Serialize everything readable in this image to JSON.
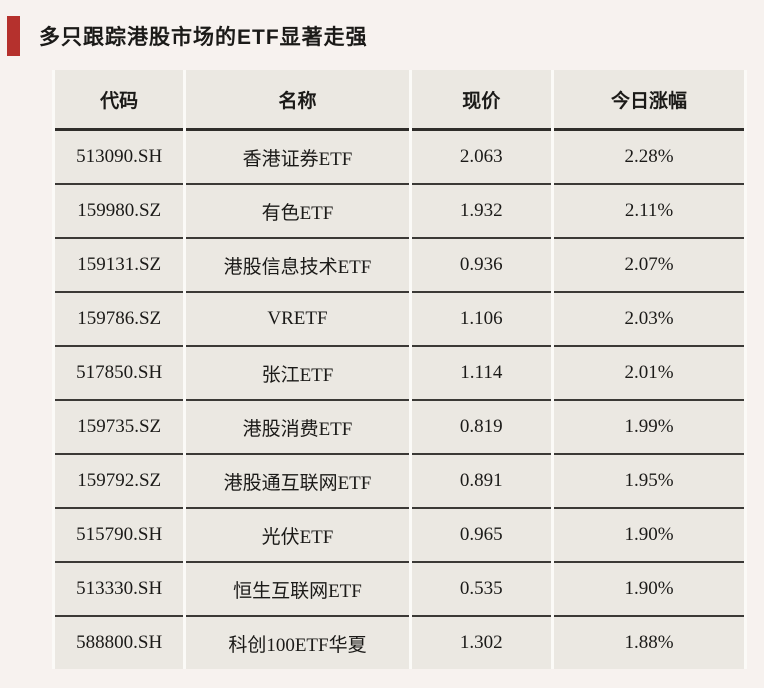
{
  "accent_color": "#b5312d",
  "title": "多只跟踪港股市场的ETF显著走强",
  "table": {
    "headers": {
      "code": "代码",
      "name": "名称",
      "price": "现价",
      "change": "今日涨幅"
    },
    "rows": [
      {
        "code": "513090.SH",
        "name": "香港证券ETF",
        "price": "2.063",
        "change": "2.28%"
      },
      {
        "code": "159980.SZ",
        "name": "有色ETF",
        "price": "1.932",
        "change": "2.11%"
      },
      {
        "code": "159131.SZ",
        "name": "港股信息技术ETF",
        "price": "0.936",
        "change": "2.07%"
      },
      {
        "code": "159786.SZ",
        "name": "VRETF",
        "price": "1.106",
        "change": "2.03%"
      },
      {
        "code": "517850.SH",
        "name": "张江ETF",
        "price": "1.114",
        "change": "2.01%"
      },
      {
        "code": "159735.SZ",
        "name": "港股消费ETF",
        "price": "0.819",
        "change": "1.99%"
      },
      {
        "code": "159792.SZ",
        "name": "港股通互联网ETF",
        "price": "0.891",
        "change": "1.95%"
      },
      {
        "code": "515790.SH",
        "name": "光伏ETF",
        "price": "0.965",
        "change": "1.90%"
      },
      {
        "code": "513330.SH",
        "name": "恒生互联网ETF",
        "price": "0.535",
        "change": "1.90%"
      },
      {
        "code": "588800.SH",
        "name": "科创100ETF华夏",
        "price": "1.302",
        "change": "1.88%"
      }
    ]
  },
  "chart_data": {
    "type": "table",
    "title": "多只跟踪港股市场的ETF显著走强",
    "columns": [
      "代码",
      "名称",
      "现价",
      "今日涨幅"
    ],
    "rows": [
      [
        "513090.SH",
        "香港证券ETF",
        2.063,
        "2.28%"
      ],
      [
        "159980.SZ",
        "有色ETF",
        1.932,
        "2.11%"
      ],
      [
        "159131.SZ",
        "港股信息技术ETF",
        0.936,
        "2.07%"
      ],
      [
        "159786.SZ",
        "VRETF",
        1.106,
        "2.03%"
      ],
      [
        "517850.SH",
        "张江ETF",
        1.114,
        "2.01%"
      ],
      [
        "159735.SZ",
        "港股消费ETF",
        0.819,
        "1.99%"
      ],
      [
        "159792.SZ",
        "港股通互联网ETF",
        0.891,
        "1.95%"
      ],
      [
        "515790.SH",
        "光伏ETF",
        0.965,
        "1.90%"
      ],
      [
        "513330.SH",
        "恒生互联网ETF",
        0.535,
        "1.90%"
      ],
      [
        "588800.SH",
        "科创100ETF华夏",
        1.302,
        "1.88%"
      ]
    ]
  }
}
